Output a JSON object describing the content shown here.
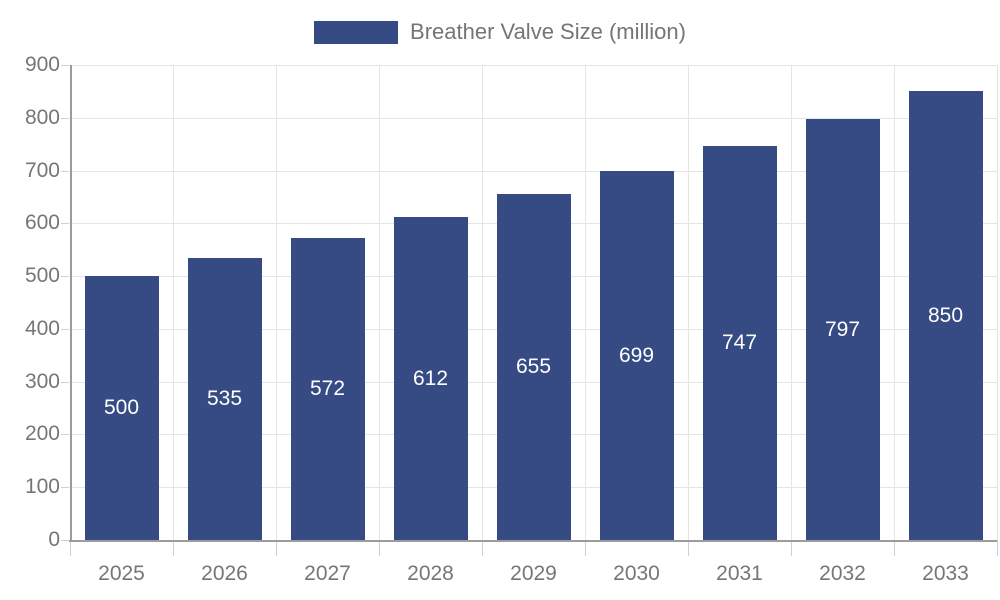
{
  "legend": {
    "label": "Breather Valve Size (million)"
  },
  "colors": {
    "bar": "#364a84",
    "legend_text": "#757575",
    "axis_label": "#767676",
    "value_label": "#ffffff",
    "grid": "#e5e5e8",
    "axis_line": "#9b9b9b",
    "tick": "#c9d0dd"
  },
  "chart_data": {
    "type": "bar",
    "title": "Breather Valve Size (million)",
    "categories": [
      "2025",
      "2026",
      "2027",
      "2028",
      "2029",
      "2030",
      "2031",
      "2032",
      "2033"
    ],
    "values": [
      500,
      535,
      572,
      612,
      655,
      699,
      747,
      797,
      850
    ],
    "xlabel": "",
    "ylabel": "",
    "ylim": [
      0,
      900
    ],
    "y_ticks": [
      0,
      100,
      200,
      300,
      400,
      500,
      600,
      700,
      800,
      900
    ],
    "grid": true,
    "legend_position": "top",
    "value_labels_inside_bars": true
  }
}
